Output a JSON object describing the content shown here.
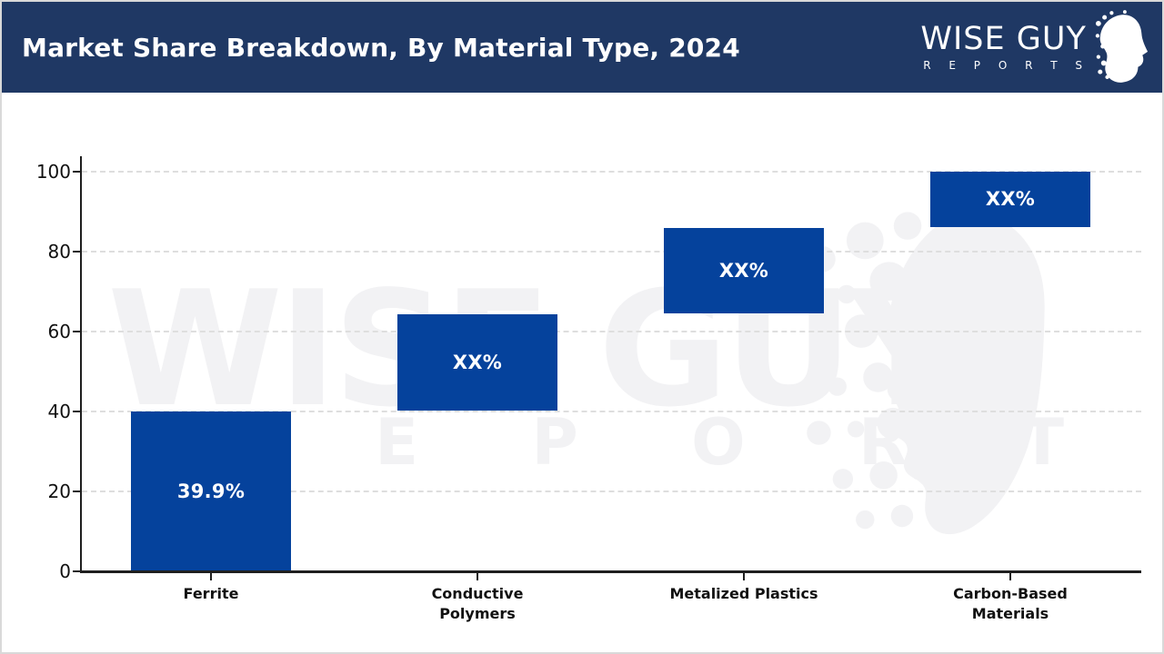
{
  "header": {
    "title": "Market Share Breakdown, By Material Type, 2024",
    "logo": {
      "line1": "WISE GUY",
      "line2": "R E P O R T S"
    }
  },
  "watermark": {
    "line1": "WISE GUY",
    "line2": "R E P O R T S"
  },
  "colors": {
    "header_bg": "#1f3864",
    "bar_blue": "#05429c",
    "watermark_gray": "#f2f2f4",
    "grid_gray": "#dedede",
    "axis_black": "#1f1f1f"
  },
  "chart_data": {
    "type": "bar",
    "subtype": "floating segmented bars showing cumulative market share",
    "title": "Market Share Breakdown, By Material Type, 2024",
    "xlabel": "",
    "ylabel": "",
    "ylim": [
      0,
      105
    ],
    "yticks": [
      0,
      20,
      40,
      60,
      80,
      100
    ],
    "grid": "dashed horizontal gridlines",
    "legend": false,
    "categories": [
      "Ferrite",
      "Conductive Polymers",
      "Metalized Plastics",
      "Carbon-Based Materials"
    ],
    "category_label_lines": [
      [
        "Ferrite"
      ],
      [
        "Conductive",
        "Polymers"
      ],
      [
        "Metalized Plastics"
      ],
      [
        "Carbon-Based",
        "Materials"
      ]
    ],
    "segments": [
      {
        "category": "Ferrite",
        "start": 0,
        "end": 39.9,
        "label": "39.9%"
      },
      {
        "category": "Conductive Polymers",
        "start": 40.2,
        "end": 64.3,
        "label": "XX%"
      },
      {
        "category": "Metalized Plastics",
        "start": 64.5,
        "end": 86.0,
        "label": "XX%"
      },
      {
        "category": "Carbon-Based Materials",
        "start": 86.2,
        "end": 100.0,
        "label": "XX%"
      }
    ],
    "bar_color": "#05429c",
    "value_label_color": "#ffffff"
  }
}
